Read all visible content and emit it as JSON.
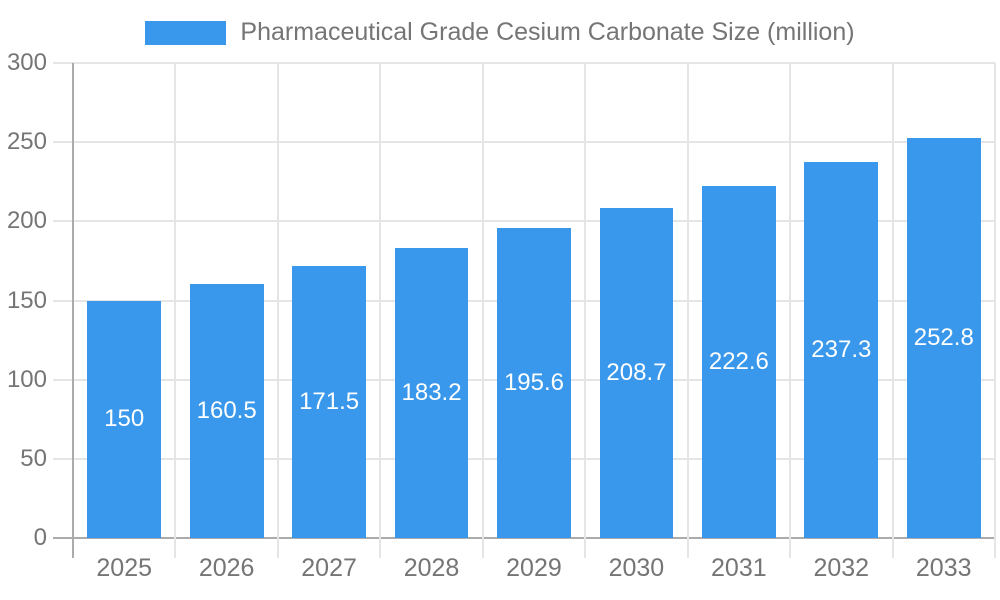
{
  "chart_data": {
    "type": "bar",
    "title": "Pharmaceutical Grade Cesium Carbonate Size (million)",
    "categories": [
      "2025",
      "2026",
      "2027",
      "2028",
      "2029",
      "2030",
      "2031",
      "2032",
      "2033"
    ],
    "values": [
      150,
      160.5,
      171.5,
      183.2,
      195.6,
      208.7,
      222.6,
      237.3,
      252.8
    ],
    "value_labels": [
      "150",
      "160.5",
      "171.5",
      "183.2",
      "195.6",
      "208.7",
      "222.6",
      "237.3",
      "252.8"
    ],
    "xlabel": "",
    "ylabel": "",
    "ylim": [
      0,
      300
    ],
    "y_ticks": [
      0,
      50,
      100,
      150,
      200,
      250,
      300
    ],
    "grid": true,
    "legend_position": "top",
    "colors": {
      "bar": "#3998EB",
      "value_label": "#ffffff",
      "axis_text": "#757575",
      "grid_line": "#e5e5e5",
      "axis_line": "#ababab",
      "background": "#ffffff"
    }
  }
}
